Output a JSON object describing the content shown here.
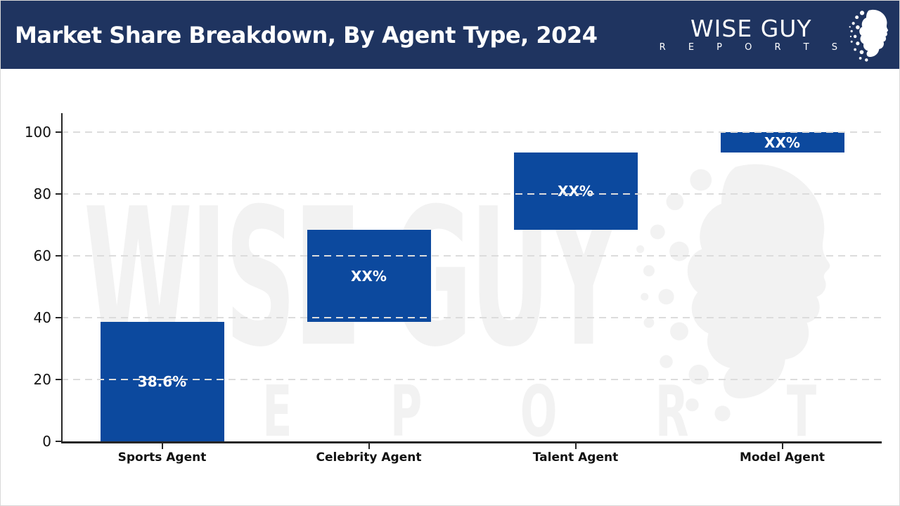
{
  "header": {
    "title": "Market Share Breakdown, By Agent Type, 2024",
    "logo": {
      "line1": "WISE GUY",
      "line2": "R E P O R T S"
    }
  },
  "watermark": {
    "line1": "WISE GUY",
    "line2": "R E P O R T S"
  },
  "chart_data": {
    "type": "bar",
    "subtype": "waterfall",
    "title": "Market Share Breakdown, By Agent Type, 2024",
    "categories": [
      "Sports Agent",
      "Celebrity Agent",
      "Talent Agent",
      "Model Agent"
    ],
    "segments": [
      {
        "category": "Sports Agent",
        "start": 0,
        "end": 38.6,
        "label": "38.6%"
      },
      {
        "category": "Celebrity Agent",
        "start": 38.6,
        "end": 68.4,
        "label": "XX%"
      },
      {
        "category": "Talent Agent",
        "start": 68.4,
        "end": 93.4,
        "label": "XX%"
      },
      {
        "category": "Model Agent",
        "start": 93.4,
        "end": 100,
        "label": "XX%"
      }
    ],
    "y_ticks": [
      0,
      20,
      40,
      60,
      80,
      100
    ],
    "ylim": [
      0,
      100
    ],
    "xlabel": "",
    "ylabel": "",
    "grid": "horizontal-dashed",
    "legend": "none"
  },
  "colors": {
    "header_bg": "#1f3460",
    "bar": "#0c499e",
    "grid": "#dcdcdc",
    "axis": "#262626",
    "text_dark": "#111111",
    "value_text": "#ffffff",
    "watermark": "#f2f2f2",
    "page_border": "#d9d9d9"
  }
}
